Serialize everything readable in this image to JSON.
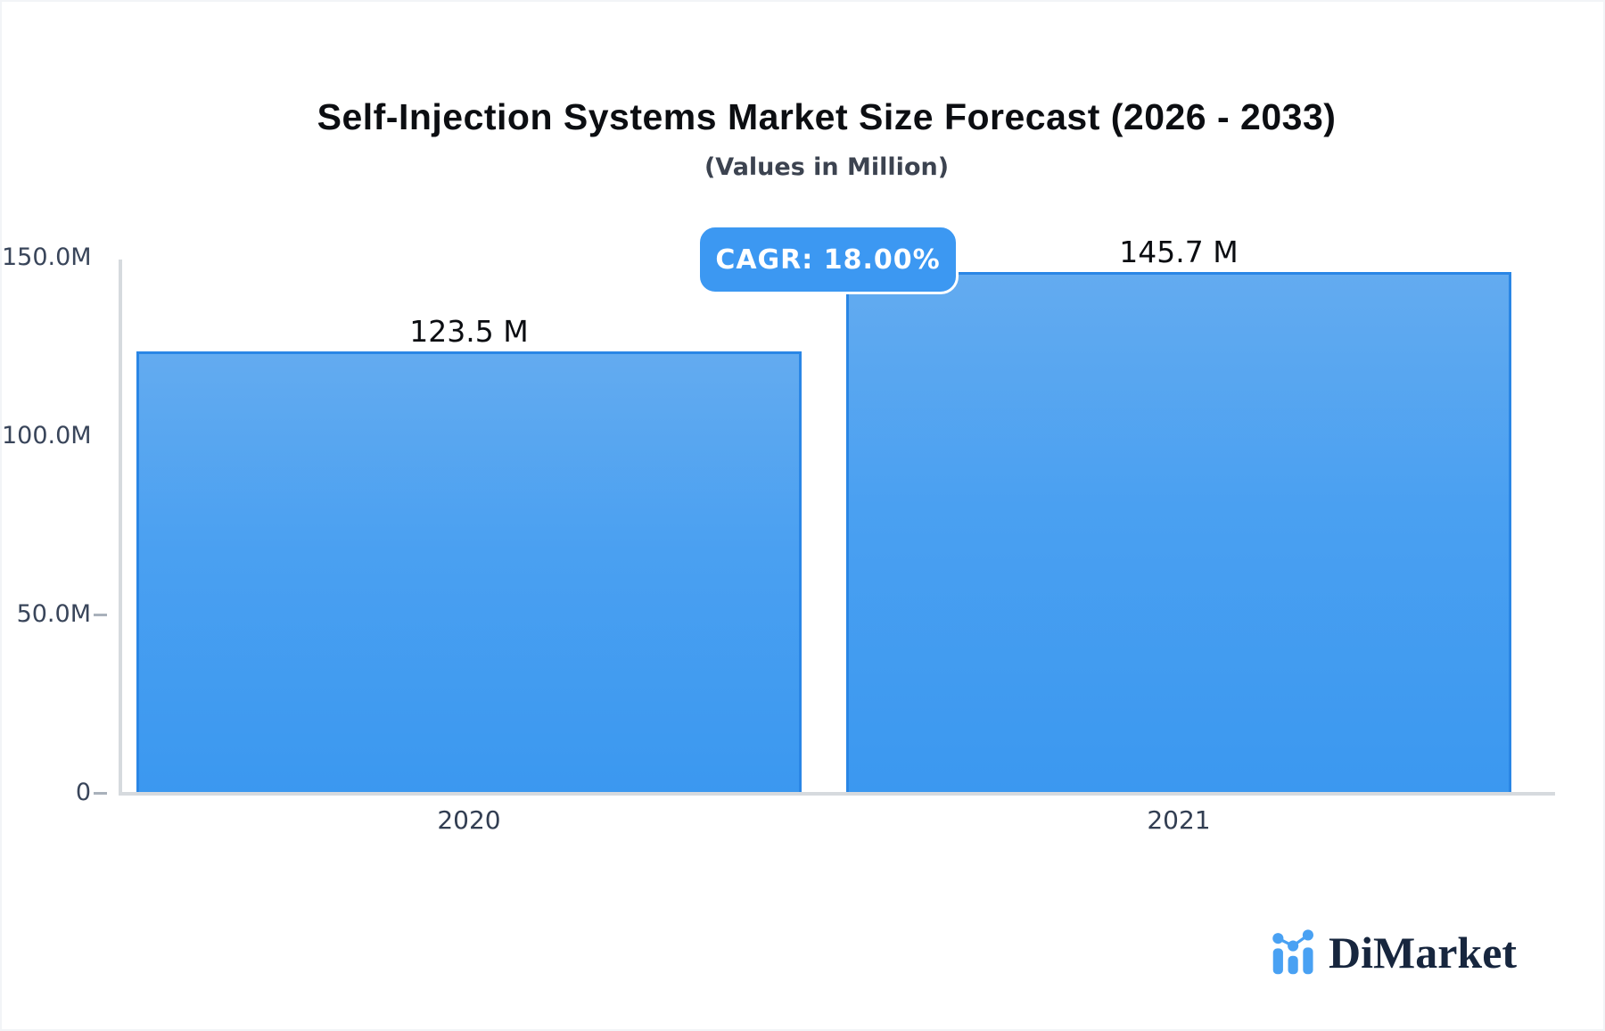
{
  "title": "Self-Injection Systems Market Size Forecast (2026 - 2033)",
  "subtitle": "(Values in Million)",
  "cagr_badge": {
    "label": "CAGR: 18.00%",
    "color": "#3c98f2"
  },
  "chart_data": {
    "type": "bar",
    "categories": [
      "2020",
      "2021"
    ],
    "values": [
      123.5,
      145.7
    ],
    "value_labels": [
      "123.5 M",
      "145.7 M"
    ],
    "title": "Self-Injection Systems Market Size Forecast (2026 - 2033)",
    "subtitle": "(Values in Million)",
    "xlabel": "",
    "ylabel": "",
    "ylim": [
      0,
      150
    ],
    "ytick_labels": [
      "150.0M",
      "100.0M",
      "50.0M",
      "0"
    ],
    "grid": false,
    "legend": "none",
    "annotations": [
      "CAGR: 18.00%"
    ],
    "bar_gradient_top": "#63abf0",
    "bar_gradient_bottom": "#3b98f0",
    "bar_border_color": "#2a86e5",
    "axis_color": "#d6dade"
  },
  "watermark": {
    "brand": "DiMarket",
    "icon_color": "#49a1f3",
    "text_color": "#17263e"
  }
}
